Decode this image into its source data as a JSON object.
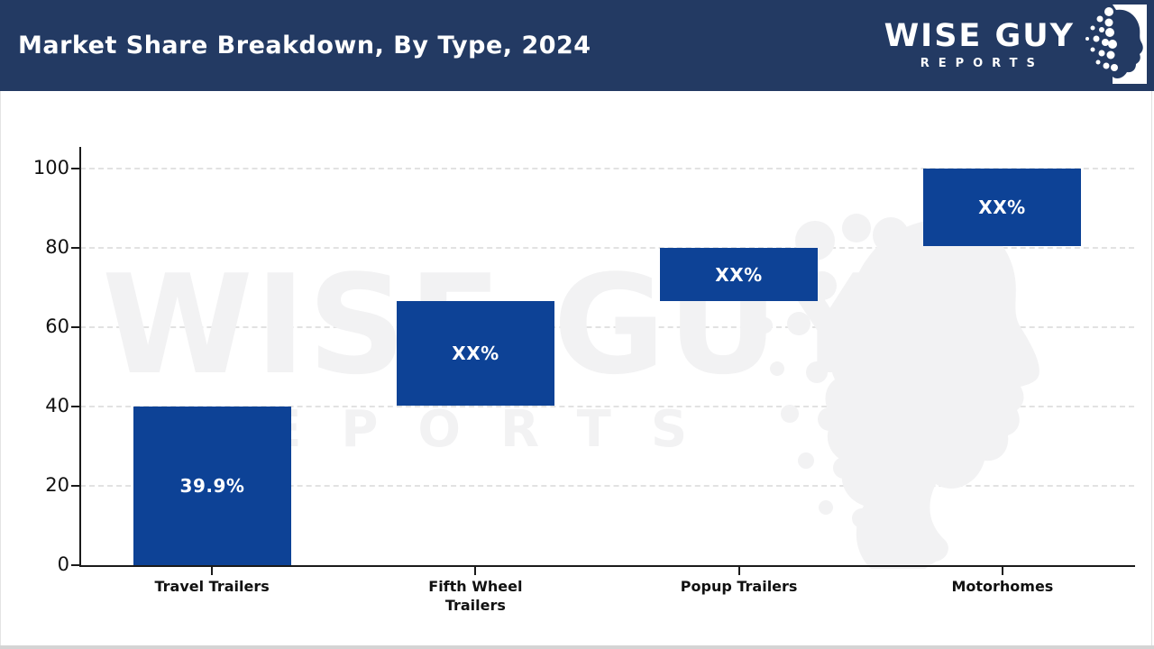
{
  "header": {
    "title": "Market Share Breakdown, By Type, 2024",
    "brand": {
      "line1": "WISE GUY",
      "line2": "REPORTS"
    }
  },
  "watermark": {
    "line1": "WISE GUY",
    "line2": "REPORTS"
  },
  "chart_data": {
    "type": "bar",
    "variant": "waterfall",
    "title": "Market Share Breakdown, By Type, 2024",
    "categories": [
      "Travel Trailers",
      "Fifth Wheel\nTrailers",
      "Popup Trailers",
      "Motorhomes"
    ],
    "segments": [
      {
        "category": "Travel Trailers",
        "start": 0,
        "end": 39.9,
        "label": "39.9%"
      },
      {
        "category": "Fifth Wheel Trailers",
        "start": 40.2,
        "end": 66.6,
        "label": "XX%"
      },
      {
        "category": "Popup Trailers",
        "start": 66.6,
        "end": 80.0,
        "label": "XX%"
      },
      {
        "category": "Motorhomes",
        "start": 80.4,
        "end": 100,
        "label": "XX%"
      }
    ],
    "ylim": [
      0,
      100
    ],
    "yticks": [
      0,
      20,
      40,
      60,
      80,
      100
    ],
    "grid": "horizontal-dashed",
    "legend": "none",
    "bar_color": "#0d4296",
    "bar_label_color": "#ffffff",
    "axis_color": "#1a1a1a",
    "header_color": "#233a63",
    "watermark_color": "#f2f2f3"
  }
}
